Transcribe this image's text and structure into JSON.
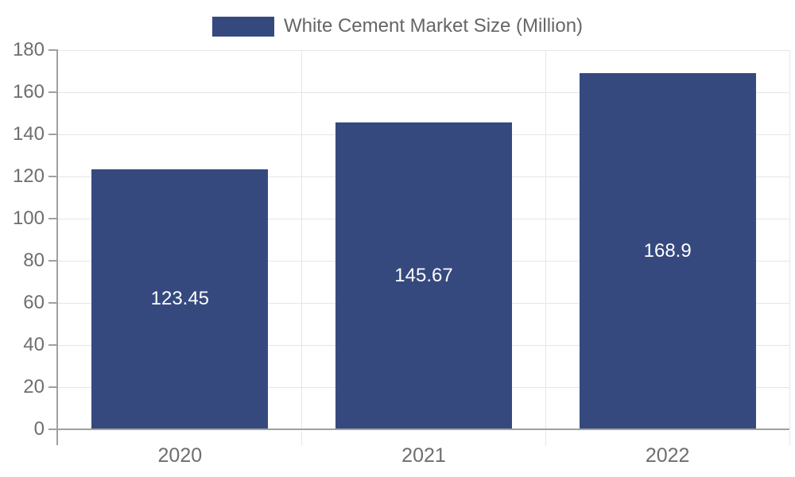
{
  "chart_data": {
    "type": "bar",
    "title": "White Cement Market Size (Million)",
    "categories": [
      "2020",
      "2021",
      "2022"
    ],
    "series": [
      {
        "name": "White Cement Market Size (Million)",
        "values": [
          123.45,
          145.67,
          168.9
        ]
      }
    ],
    "value_labels": [
      "123.45",
      "145.67",
      "168.9"
    ],
    "xlabel": "",
    "ylabel": "",
    "ylim": [
      0,
      180
    ],
    "yticks": [
      0,
      20,
      40,
      60,
      80,
      100,
      120,
      140,
      160,
      180
    ],
    "grid": true,
    "legend_position": "top-center",
    "colors": {
      "bar": "#36497F",
      "bar_label": "#FFFFFF",
      "legend_text": "#666666",
      "tick_text": "#6E6E6E",
      "axis_line": "#A0A0A0",
      "gridline": "#E6E6E6",
      "background": "#FFFFFF"
    }
  }
}
